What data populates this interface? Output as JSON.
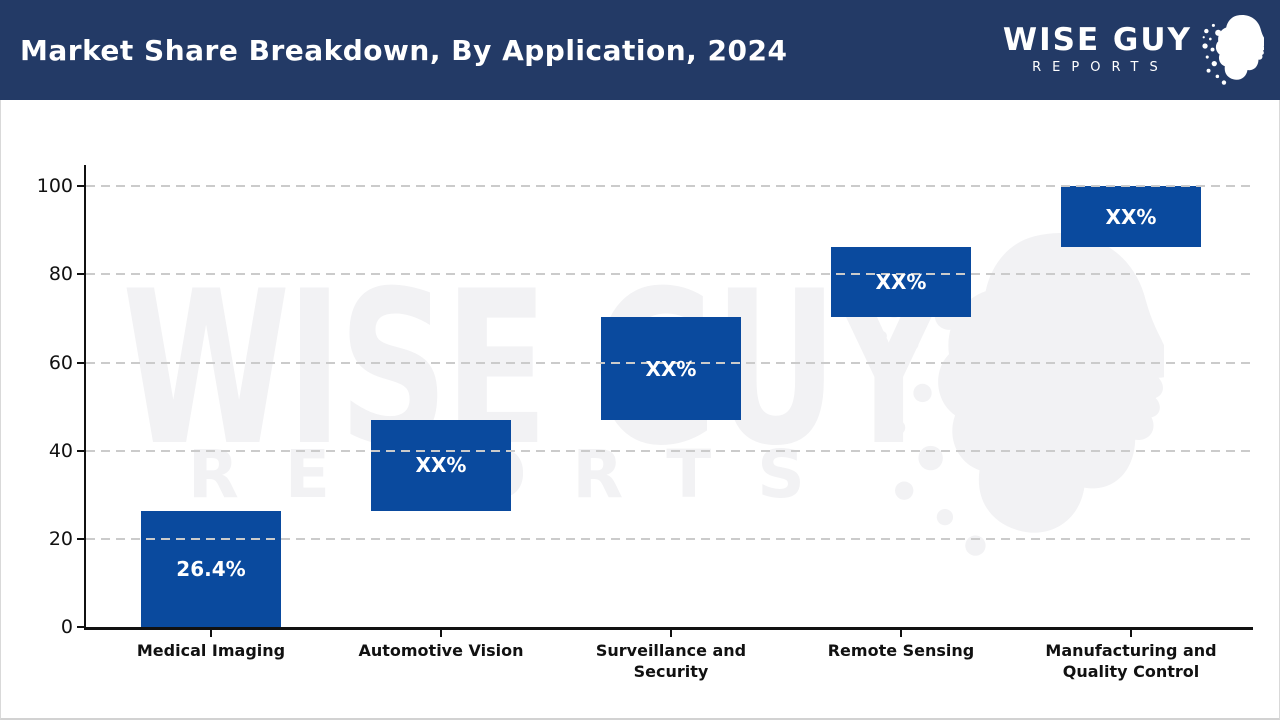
{
  "header": {
    "title": "Market Share Breakdown, By Application, 2024",
    "logo": {
      "name": "WISE GUY",
      "sub": "REPORTS"
    }
  },
  "watermark": {
    "line1": "WISE GUY",
    "line2": "REPORTS"
  },
  "chart_data": {
    "type": "bar",
    "subtype": "waterfall",
    "title": "Market Share Breakdown, By Application, 2024",
    "categories": [
      "Medical Imaging",
      "Automotive Vision",
      "Surveillance and Security",
      "Remote Sensing",
      "Manufacturing and Quality Control"
    ],
    "segments": [
      {
        "category": "Medical Imaging",
        "from": 0,
        "to": 26.4,
        "label": "26.4%"
      },
      {
        "category": "Automotive Vision",
        "from": 26.4,
        "to": 47.0,
        "label": "XX%"
      },
      {
        "category": "Surveillance and Security",
        "from": 47.0,
        "to": 70.3,
        "label": "XX%"
      },
      {
        "category": "Remote Sensing",
        "from": 70.3,
        "to": 86.2,
        "label": "XX%"
      },
      {
        "category": "Manufacturing and Quality Control",
        "from": 86.2,
        "to": 100,
        "label": "XX%"
      }
    ],
    "yticks": [
      0,
      20,
      40,
      60,
      80,
      100
    ],
    "ylim": [
      0,
      100
    ],
    "xlabel": "",
    "ylabel": "",
    "legend": "none",
    "grid": "horizontal dashed lines drawn above bars",
    "bar_color": "#0a4a9e",
    "bar_label_color": "#ffffff"
  },
  "colors": {
    "header_bg": "#233a66",
    "bar": "#0a4a9e",
    "grid": "#cbcbcb",
    "axis": "#111111",
    "watermark": "#f2f2f4",
    "frame_border": "#d9d9d9"
  }
}
